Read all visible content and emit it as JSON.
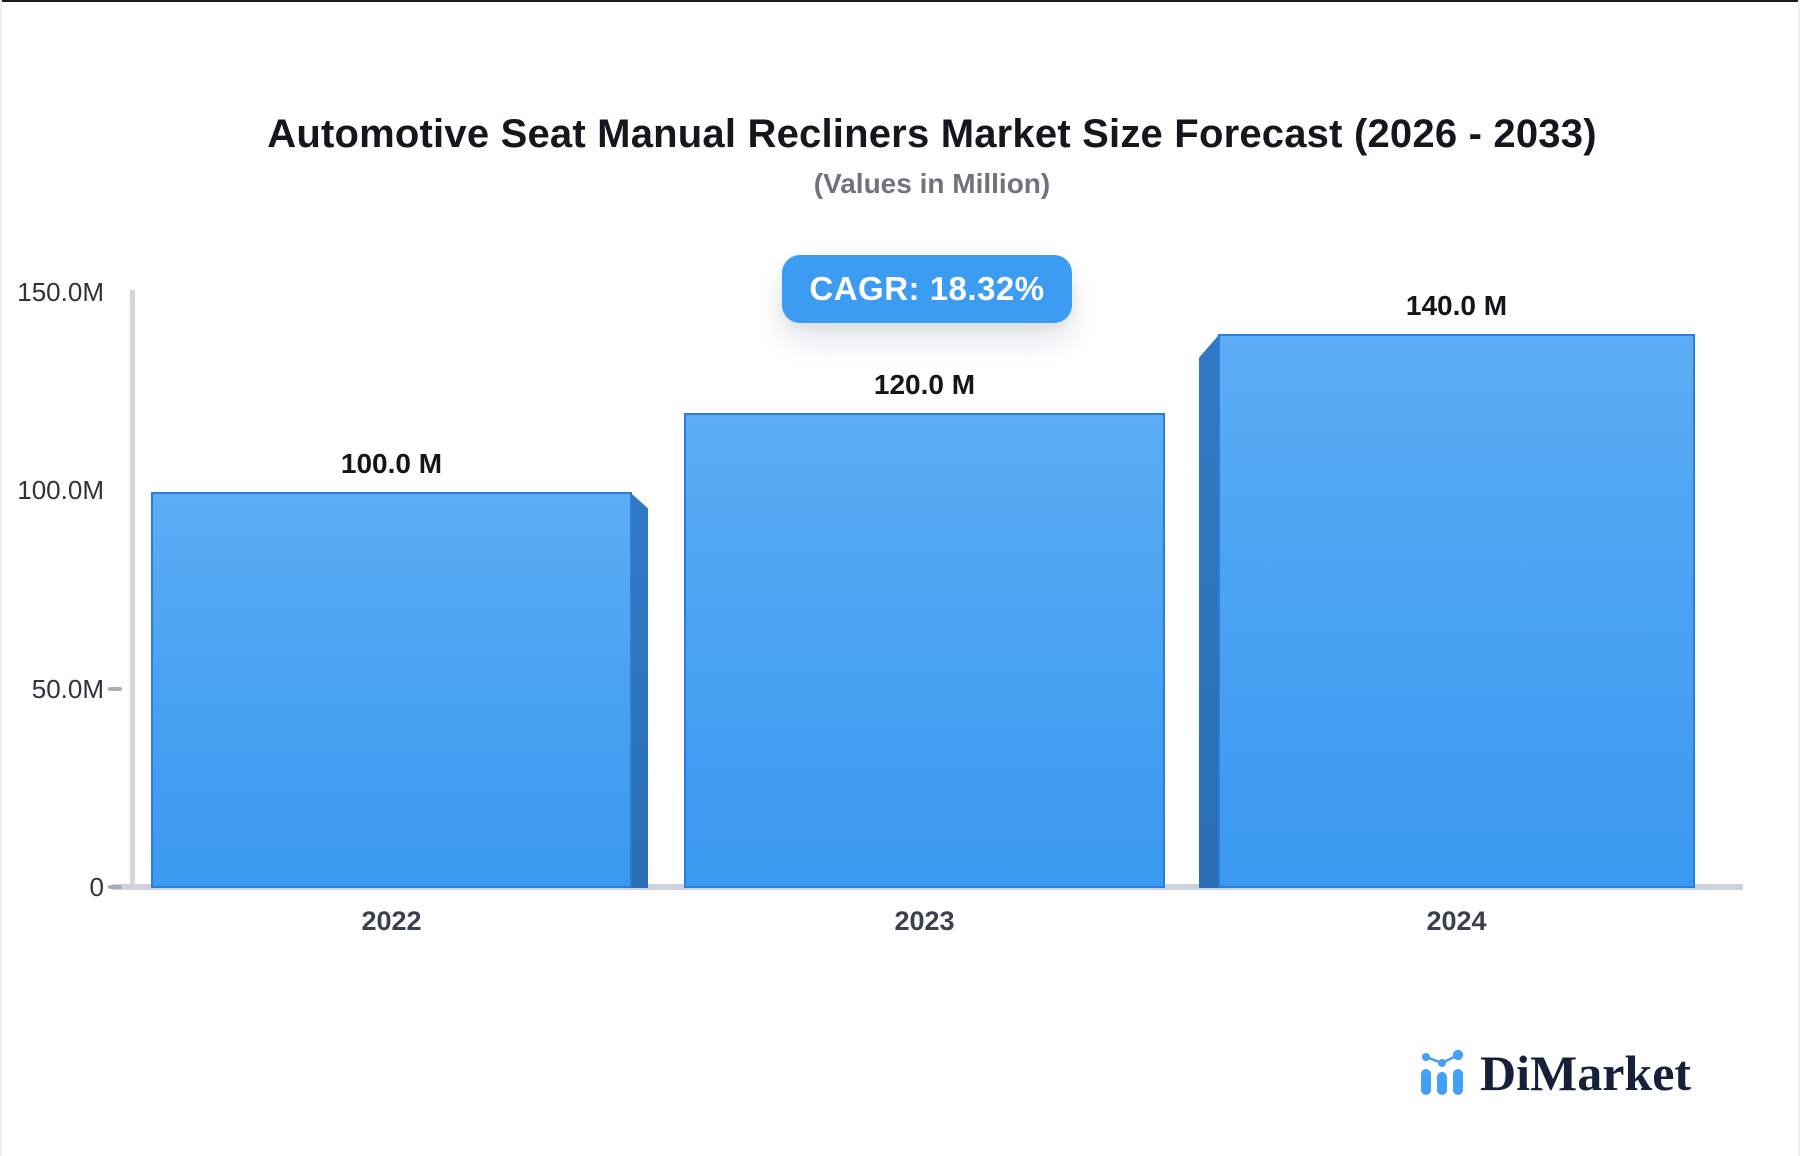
{
  "header": {
    "title": "Automotive Seat Manual Recliners Market Size Forecast (2026 - 2033)",
    "subtitle": "(Values in Million)"
  },
  "badge": {
    "label": "CAGR: 18.32%",
    "bg_color": "#3b9cf2",
    "text_color": "#ffffff"
  },
  "chart_data": {
    "type": "bar",
    "title": "Automotive Seat Manual Recliners Market Size Forecast (2026 - 2033)",
    "subtitle": "(Values in Million)",
    "unit": "Million",
    "cagr_percent": 18.32,
    "categories": [
      "2022",
      "2023",
      "2024"
    ],
    "values": [
      100.0,
      120.0,
      140.0
    ],
    "value_labels": [
      "100.0 M",
      "120.0 M",
      "140.0 M"
    ],
    "ylim": [
      0,
      150
    ],
    "yticks": [
      {
        "label": "150.0M",
        "value": 150,
        "dash": false
      },
      {
        "label": "100.0M",
        "value": 100,
        "dash": false
      },
      {
        "label": "50.0M",
        "value": 50,
        "dash": true
      },
      {
        "label": "0",
        "value": 0,
        "dash": true
      }
    ],
    "grid": false,
    "legend": "none",
    "bar_color_top": "#5cadf4",
    "bar_color_bottom": "#3b99f1",
    "bar_border_color": "#2a7ed9",
    "bar_side_color": "#2d73ba",
    "axis_color": "#ced2da"
  },
  "logo": {
    "name": "DiMarket",
    "icon": "bar-chart-trend-icon",
    "icon_color": "#42a0f5",
    "text_color": "#16203a"
  }
}
